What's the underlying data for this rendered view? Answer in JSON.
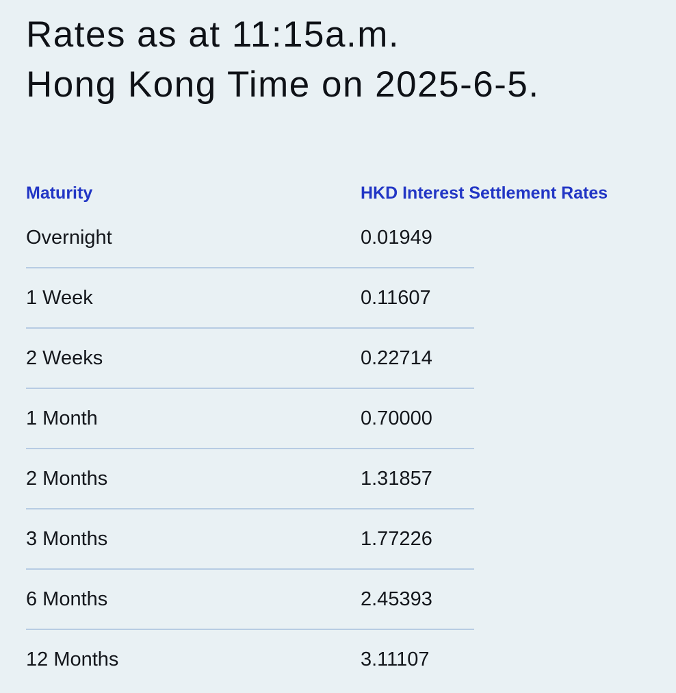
{
  "page": {
    "title_line1": "Rates as at 11:15a.m.",
    "title_line2": "Hong Kong Time on 2025-6-5."
  },
  "table": {
    "headers": {
      "maturity": "Maturity",
      "rates": "HKD Interest Settlement Rates"
    },
    "rows": [
      {
        "maturity": "Overnight",
        "rate": "0.01949"
      },
      {
        "maturity": "1 Week",
        "rate": "0.11607"
      },
      {
        "maturity": "2 Weeks",
        "rate": "0.22714"
      },
      {
        "maturity": "1 Month",
        "rate": "0.70000"
      },
      {
        "maturity": "2 Months",
        "rate": "1.31857"
      },
      {
        "maturity": "3 Months",
        "rate": "1.77226"
      },
      {
        "maturity": "6 Months",
        "rate": "2.45393"
      },
      {
        "maturity": "12 Months",
        "rate": "3.11107"
      }
    ]
  },
  "colors": {
    "background": "#e9f1f4",
    "header_text": "#2236c5",
    "body_text": "#14171c",
    "divider": "#b7cce3"
  }
}
